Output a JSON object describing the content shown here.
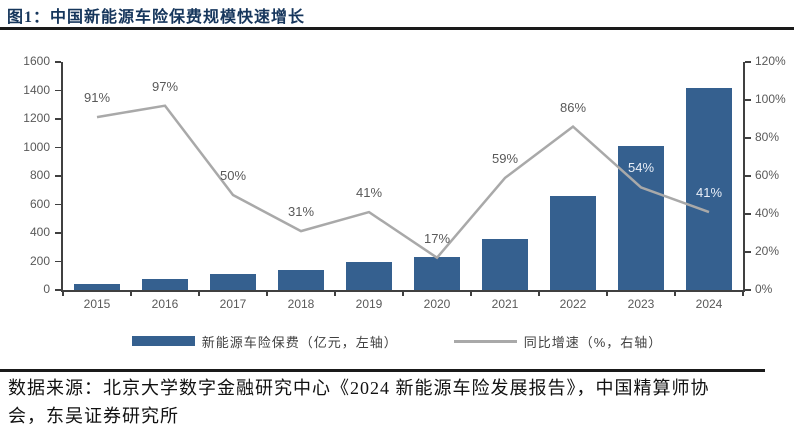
{
  "figure": {
    "title": "图1：中国新能源车险保费规模快速增长",
    "source_line1": "数据来源：北京大学数字金融研究中心《2024 新能源车险发展报告》，中国精算师协",
    "source_line2": "会，东吴证券研究所"
  },
  "chart_data": {
    "type": "bar",
    "title": "中国新能源车险保费规模快速增长",
    "categories": [
      "2015",
      "2016",
      "2017",
      "2018",
      "2019",
      "2020",
      "2021",
      "2022",
      "2023",
      "2024"
    ],
    "series": [
      {
        "name": "新能源车险保费（亿元，左轴）",
        "type": "bar",
        "axis": "left",
        "color": "#35608F",
        "values": [
          40,
          78,
          110,
          140,
          200,
          230,
          360,
          660,
          1010,
          1415
        ]
      },
      {
        "name": "同比增速（%，右轴）",
        "type": "line",
        "axis": "right",
        "color": "#A9A9A9",
        "values": [
          91,
          97,
          50,
          31,
          41,
          17,
          59,
          86,
          54,
          41
        ],
        "point_labels": [
          "91%",
          "97%",
          "50%",
          "31%",
          "41%",
          "17%",
          "59%",
          "86%",
          "54%",
          "41%"
        ]
      }
    ],
    "left_axis": {
      "min": 0,
      "max": 1600,
      "step": 200,
      "tick_labels": [
        "0",
        "200",
        "400",
        "600",
        "800",
        "1000",
        "1200",
        "1400",
        "1600"
      ]
    },
    "right_axis": {
      "min": 0,
      "max": 120,
      "step": 20,
      "tick_labels": [
        "0%",
        "20%",
        "40%",
        "60%",
        "80%",
        "100%",
        "120%"
      ]
    },
    "grid": false,
    "legend_position": "bottom"
  },
  "colors": {
    "bar": "#35608F",
    "line": "#A9A9A9",
    "title": "#16365C",
    "axis": "#404040",
    "tick_text": "#595959",
    "label_text": "#595959",
    "label_on_bar": "#E8EEF7",
    "rule": "#1A1A1A"
  }
}
